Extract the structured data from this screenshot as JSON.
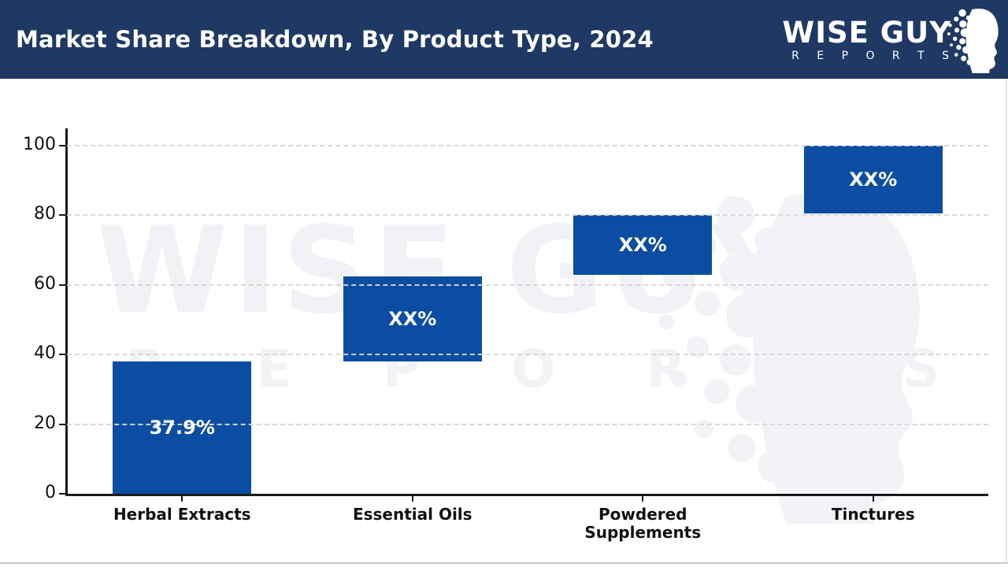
{
  "header": {
    "title": "Market Share Breakdown, By Product Type, 2024",
    "logo": {
      "name_line": "WISE GUY",
      "sub_line": "R E P O R T S"
    },
    "colors": {
      "background": "#1f3864",
      "text": "#ffffff"
    }
  },
  "watermark": {
    "line1": "WISE GUY",
    "line2": "R E P O R T S"
  },
  "chart_data": {
    "type": "bar",
    "variant": "waterfall",
    "title": "Market Share Breakdown, By Product Type, 2024",
    "categories": [
      "Herbal Extracts",
      "Essential Oils",
      "Powdered Supplements",
      "Tinctures"
    ],
    "segments": [
      {
        "category": "Herbal Extracts",
        "start": 0,
        "end": 37.9,
        "label": "37.9%"
      },
      {
        "category": "Essential Oils",
        "start": 38,
        "end": 62.5,
        "label": "XX%"
      },
      {
        "category": "Powdered Supplements",
        "start": 63,
        "end": 80.2,
        "label": "XX%"
      },
      {
        "category": "Tinctures",
        "start": 80.6,
        "end": 100,
        "label": "XX%"
      }
    ],
    "xlabel": "",
    "ylabel": "",
    "ylim": [
      0,
      100
    ],
    "yticks": [
      0,
      20,
      40,
      60,
      80,
      100
    ],
    "grid": "horizontal-dashed-over-bars",
    "legend": "none",
    "bar_color": "#0b4da2",
    "bar_label_color": "#ffffff",
    "axis_color": "#1a1a1a",
    "gridline_color": "#d7d7d7"
  }
}
